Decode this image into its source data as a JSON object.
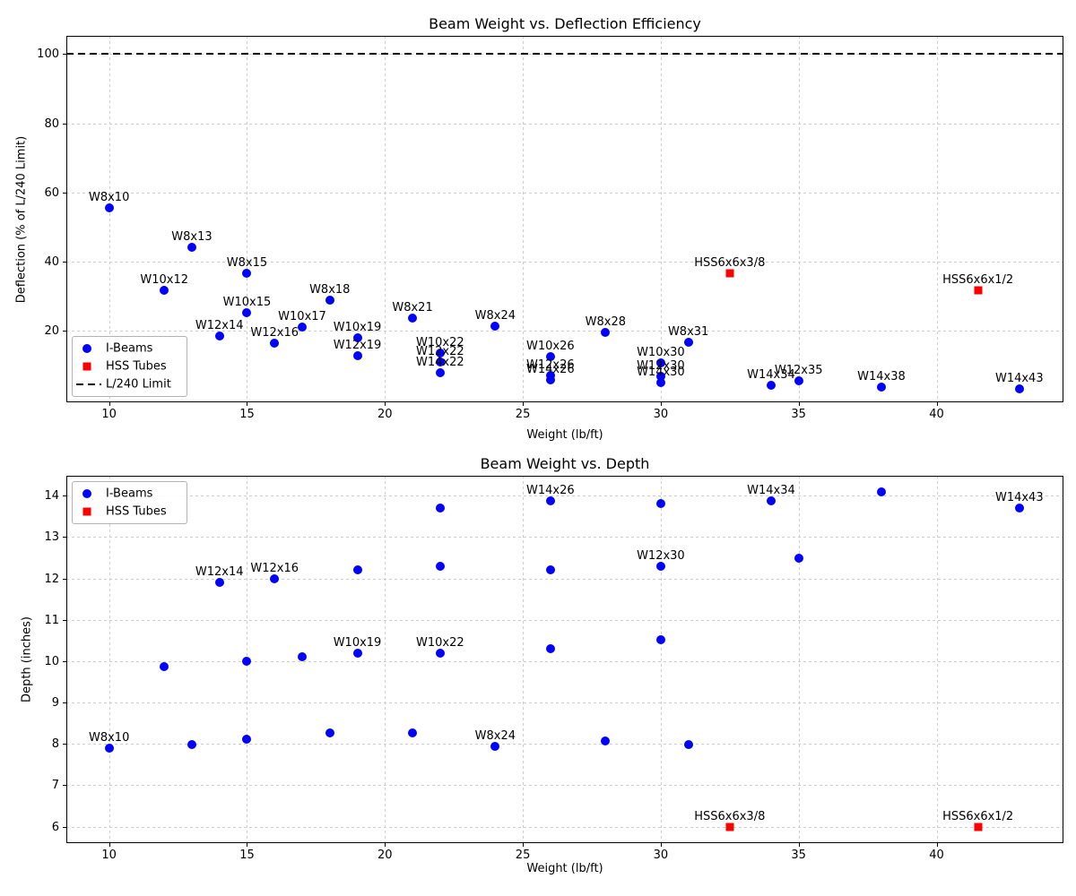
{
  "figure": {
    "background": "#ffffff"
  },
  "colors": {
    "ibeam": "#0000ff",
    "hss": "#ff0000",
    "limit_line": "#000000",
    "grid": "#cdcdcd"
  },
  "chart_data": {
    "type": "scatter",
    "charts": [
      {
        "title": "Beam Weight vs. Deflection Efficiency",
        "xlabel": "Weight (lb/ft)",
        "ylabel": "Deflection (% of L/240 Limit)",
        "y_field": "deflection_pct",
        "annotate_all": true,
        "xlim": [
          8.45,
          44.6
        ],
        "ylim": [
          -0.8,
          105.3
        ],
        "xticks": [
          10,
          15,
          20,
          25,
          30,
          35,
          40
        ],
        "yticks": [
          20,
          40,
          60,
          80,
          100
        ],
        "grid": true,
        "limit_line": {
          "y": 100,
          "label": "L/240 Limit",
          "style": "dashed",
          "color": "#000000"
        },
        "legend": {
          "position": "lower left",
          "entries": [
            {
              "marker": "circle",
              "color": "#0000ff",
              "label": "I-Beams"
            },
            {
              "marker": "square",
              "color": "#ff0000",
              "label": "HSS Tubes"
            },
            {
              "marker": "dash",
              "color": "#000000",
              "label": "L/240 Limit"
            }
          ]
        }
      },
      {
        "title": "Beam Weight vs. Depth",
        "xlabel": "Weight (lb/ft)",
        "ylabel": "Depth (inches)",
        "y_field": "depth_in",
        "annotate_all": false,
        "xlim": [
          8.45,
          44.6
        ],
        "ylim": [
          5.6,
          14.48
        ],
        "xticks": [
          10,
          15,
          20,
          25,
          30,
          35,
          40
        ],
        "yticks": [
          6,
          7,
          8,
          9,
          10,
          11,
          12,
          13,
          14
        ],
        "grid": true,
        "limit_line": null,
        "legend": {
          "position": "upper left",
          "entries": [
            {
              "marker": "circle",
              "color": "#0000ff",
              "label": "I-Beams"
            },
            {
              "marker": "square",
              "color": "#ff0000",
              "label": "HSS Tubes"
            }
          ]
        }
      }
    ],
    "series": [
      {
        "name": "I-Beams",
        "marker": "circle",
        "color": "#0000ff",
        "points": [
          {
            "label": "W8x10",
            "weight": 10,
            "deflection_pct": 55.6,
            "depth_in": 7.89,
            "depth_labeled": true
          },
          {
            "label": "W10x12",
            "weight": 12,
            "deflection_pct": 31.7,
            "depth_in": 9.87,
            "depth_labeled": false
          },
          {
            "label": "W8x13",
            "weight": 13,
            "deflection_pct": 44.1,
            "depth_in": 7.99,
            "depth_labeled": false
          },
          {
            "label": "W12x14",
            "weight": 14,
            "deflection_pct": 18.4,
            "depth_in": 11.91,
            "depth_labeled": true
          },
          {
            "label": "W8x15",
            "weight": 15,
            "deflection_pct": 36.6,
            "depth_in": 8.11,
            "depth_labeled": false
          },
          {
            "label": "W10x15",
            "weight": 15,
            "deflection_pct": 25.2,
            "depth_in": 10.0,
            "depth_labeled": false
          },
          {
            "label": "W12x16",
            "weight": 16,
            "deflection_pct": 16.3,
            "depth_in": 11.99,
            "depth_labeled": true
          },
          {
            "label": "W10x17",
            "weight": 17,
            "deflection_pct": 21.0,
            "depth_in": 10.11,
            "depth_labeled": false
          },
          {
            "label": "W8x18",
            "weight": 18,
            "deflection_pct": 28.7,
            "depth_in": 8.27,
            "depth_labeled": false
          },
          {
            "label": "W10x19",
            "weight": 19,
            "deflection_pct": 18.0,
            "depth_in": 10.19,
            "depth_labeled": true
          },
          {
            "label": "W12x19",
            "weight": 19,
            "deflection_pct": 12.6,
            "depth_in": 12.21,
            "depth_labeled": false
          },
          {
            "label": "W8x21",
            "weight": 21,
            "deflection_pct": 23.6,
            "depth_in": 8.27,
            "depth_labeled": false
          },
          {
            "label": "W10x22",
            "weight": 22,
            "deflection_pct": 13.4,
            "depth_in": 10.19,
            "depth_labeled": true
          },
          {
            "label": "W12x22",
            "weight": 22,
            "deflection_pct": 11.0,
            "depth_in": 12.29,
            "depth_labeled": false
          },
          {
            "label": "W14x22",
            "weight": 22,
            "deflection_pct": 7.8,
            "depth_in": 13.69,
            "depth_labeled": false
          },
          {
            "label": "W8x24",
            "weight": 24,
            "deflection_pct": 21.3,
            "depth_in": 7.93,
            "depth_labeled": true
          },
          {
            "label": "W10x26",
            "weight": 26,
            "deflection_pct": 12.4,
            "depth_in": 10.31,
            "depth_labeled": false
          },
          {
            "label": "W12x26",
            "weight": 26,
            "deflection_pct": 7.1,
            "depth_in": 12.21,
            "depth_labeled": false
          },
          {
            "label": "W14x26",
            "weight": 26,
            "deflection_pct": 5.7,
            "depth_in": 13.88,
            "depth_labeled": true
          },
          {
            "label": "W8x28",
            "weight": 28,
            "deflection_pct": 19.4,
            "depth_in": 8.06,
            "depth_labeled": false
          },
          {
            "label": "W10x30",
            "weight": 30,
            "deflection_pct": 10.6,
            "depth_in": 10.51,
            "depth_labeled": false
          },
          {
            "label": "W12x30",
            "weight": 30,
            "deflection_pct": 6.7,
            "depth_in": 12.29,
            "depth_labeled": true
          },
          {
            "label": "W14x30",
            "weight": 30,
            "deflection_pct": 5.0,
            "depth_in": 13.81,
            "depth_labeled": false
          },
          {
            "label": "W8x31",
            "weight": 31,
            "deflection_pct": 16.5,
            "depth_in": 7.99,
            "depth_labeled": false
          },
          {
            "label": "W14x34",
            "weight": 34,
            "deflection_pct": 4.0,
            "depth_in": 13.88,
            "depth_labeled": true
          },
          {
            "label": "W12x35",
            "weight": 35,
            "deflection_pct": 5.4,
            "depth_in": 12.49,
            "depth_labeled": false
          },
          {
            "label": "W14x38",
            "weight": 38,
            "deflection_pct": 3.6,
            "depth_in": 14.08,
            "depth_labeled": false
          },
          {
            "label": "W14x43",
            "weight": 43,
            "deflection_pct": 3.0,
            "depth_in": 13.69,
            "depth_labeled": true
          }
        ]
      },
      {
        "name": "HSS Tubes",
        "marker": "square",
        "color": "#ff0000",
        "points": [
          {
            "label": "HSS6x6x3/8",
            "weight": 32.5,
            "deflection_pct": 36.5,
            "depth_in": 6.0,
            "depth_labeled": true
          },
          {
            "label": "HSS6x6x1/2",
            "weight": 41.5,
            "deflection_pct": 31.7,
            "depth_in": 6.0,
            "depth_labeled": true
          }
        ]
      }
    ]
  }
}
